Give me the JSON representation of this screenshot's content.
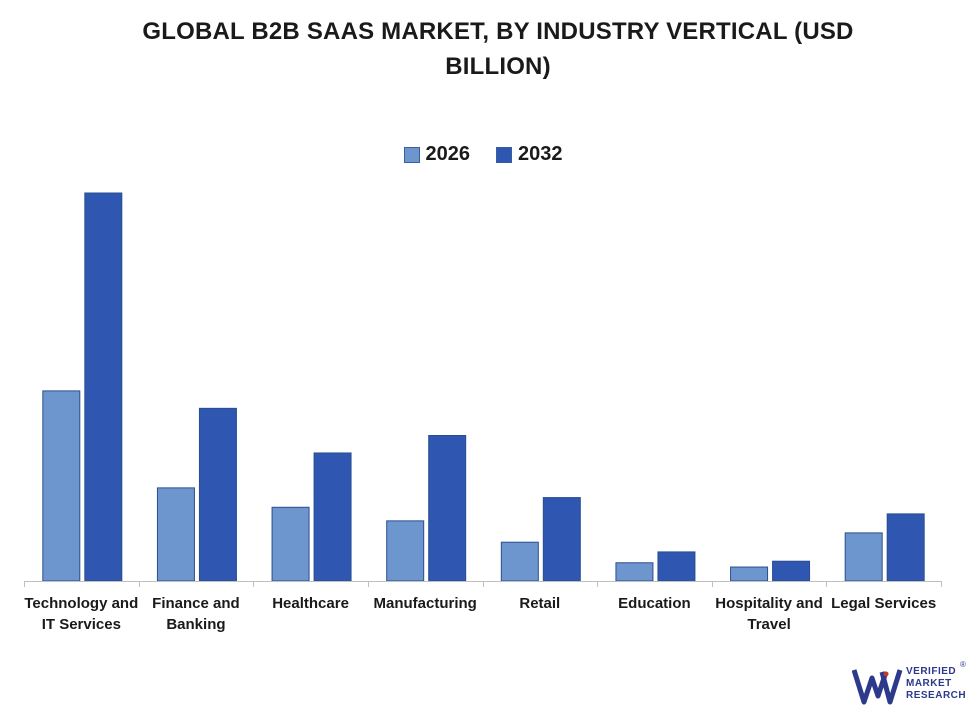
{
  "chart_data": {
    "type": "bar",
    "title": "GLOBAL B2B SAAS MARKET, BY INDUSTRY VERTICAL (USD BILLION)",
    "title_lines": [
      "GLOBAL B2B SAAS MARKET, BY INDUSTRY VERTICAL (USD",
      "BILLION)"
    ],
    "categories": [
      [
        "Technology and",
        "IT Services"
      ],
      [
        "Finance and",
        "Banking"
      ],
      [
        "Healthcare"
      ],
      [
        "Manufacturing"
      ],
      [
        "Retail"
      ],
      [
        "Education"
      ],
      [
        "Hospitality and",
        "Travel"
      ],
      [
        "Legal Services"
      ]
    ],
    "series": [
      {
        "name": "2026",
        "color": "#6d96cf",
        "values": [
          49,
          24,
          19,
          15.5,
          10,
          4.7,
          3.6,
          12.4
        ]
      },
      {
        "name": "2032",
        "color": "#2f56b0",
        "values": [
          100,
          44.5,
          33,
          37.5,
          21.5,
          7.5,
          5.1,
          17.3
        ]
      }
    ],
    "xlabel": "",
    "ylabel": "",
    "ylim": [
      0,
      100
    ],
    "grid": false,
    "legend_position": "top-center"
  },
  "logo": {
    "lines": [
      "VERIFIED",
      "MARKET",
      "RESEARCH"
    ],
    "reg": "®",
    "color": "#2d3a8c",
    "accent": "#c0392b"
  }
}
